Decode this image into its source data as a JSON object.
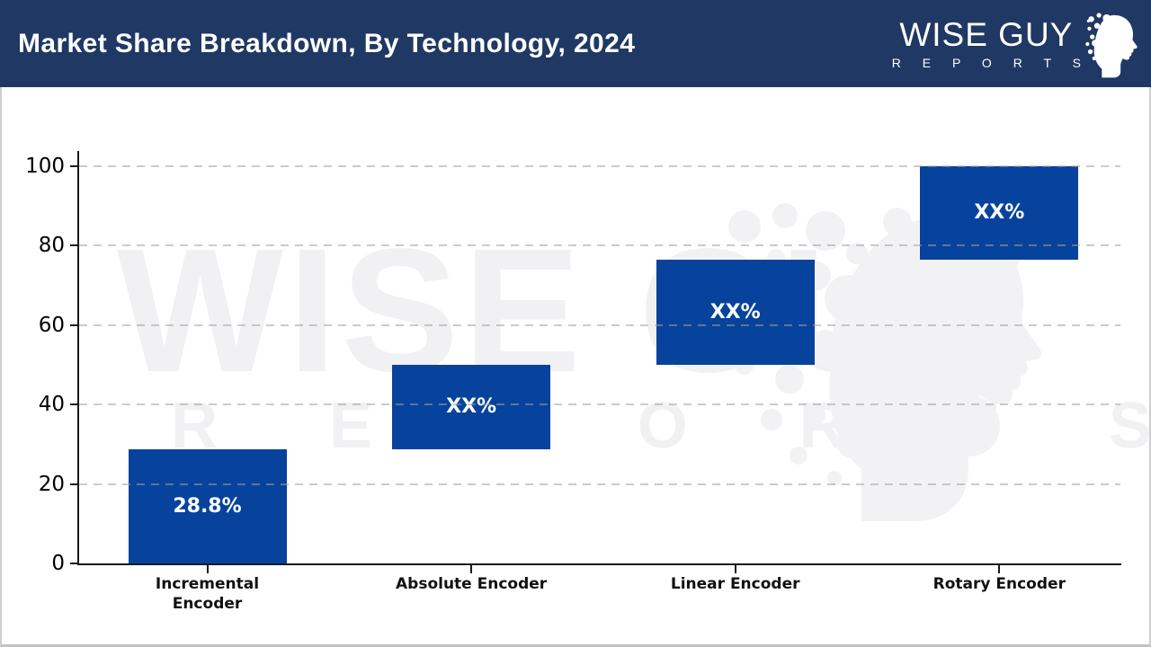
{
  "header": {
    "title": "Market Share Breakdown, By Technology, 2024",
    "logo": {
      "line1": "WISE GUY",
      "line2": "R E P O R T S"
    }
  },
  "watermark": {
    "line1": "WISE GUY",
    "line2": "R E P O R T S"
  },
  "colors": {
    "header_bg": "#1f3864",
    "bar": "#07439c",
    "axis": "#1a1a1a",
    "grid": "rgba(160,160,160,0.55)",
    "watermark": "#f1f1f3",
    "bar_label_text": "#ffffff"
  },
  "chart_data": {
    "type": "bar",
    "subtype": "waterfall-floating-segments",
    "title": "Market Share Breakdown, By Technology, 2024",
    "categories": [
      "Incremental\nEncoder",
      "Absolute Encoder",
      "Linear Encoder",
      "Rotary Encoder"
    ],
    "segments": [
      {
        "category": "Incremental Encoder",
        "start": 0,
        "end": 28.8,
        "label": "28.8%"
      },
      {
        "category": "Absolute Encoder",
        "start": 28.8,
        "end": 50,
        "label": "XX%"
      },
      {
        "category": "Linear Encoder",
        "start": 50,
        "end": 76.5,
        "label": "XX%"
      },
      {
        "category": "Rotary Encoder",
        "start": 76.5,
        "end": 100,
        "label": "XX%"
      }
    ],
    "yticks": [
      0,
      20,
      40,
      60,
      80,
      100
    ],
    "ylim": [
      0,
      105
    ],
    "xlabel": "",
    "ylabel": "",
    "grid": "horizontal-dashed",
    "legend": "none"
  }
}
